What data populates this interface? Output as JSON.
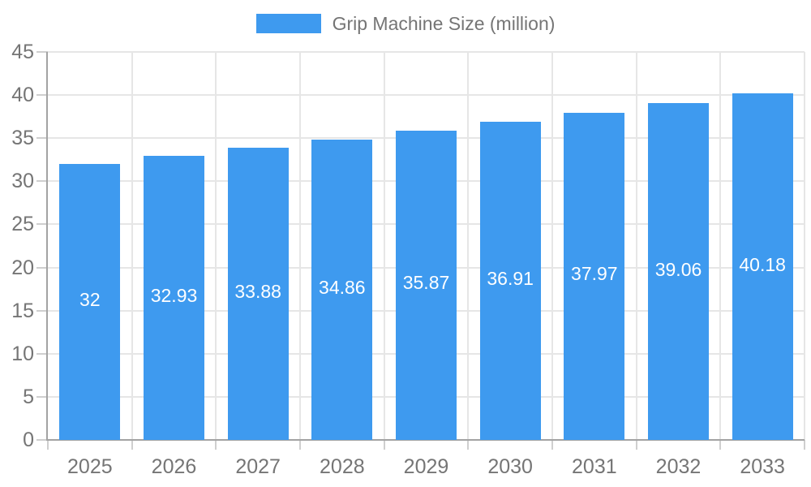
{
  "legend": {
    "series_label": "Grip Machine Size (million)"
  },
  "chart_data": {
    "type": "bar",
    "title": "Grip Machine Size (million)",
    "categories": [
      "2025",
      "2026",
      "2027",
      "2028",
      "2029",
      "2030",
      "2031",
      "2032",
      "2033"
    ],
    "values": [
      32,
      32.93,
      33.88,
      34.86,
      35.87,
      36.91,
      37.97,
      39.06,
      40.18
    ],
    "value_labels": [
      "32",
      "32.93",
      "33.88",
      "34.86",
      "35.87",
      "36.91",
      "37.97",
      "39.06",
      "40.18"
    ],
    "xlabel": "",
    "ylabel": "",
    "ylim": [
      0,
      45
    ],
    "ytick_step": 5,
    "ytick_labels": [
      "0",
      "5",
      "10",
      "15",
      "20",
      "25",
      "30",
      "35",
      "40",
      "45"
    ],
    "grid": true,
    "legend_position": "top-center",
    "colors": {
      "bar": "#3E9AEF",
      "grid_line": "#E6E6E6",
      "axis_line": "#A3A3A3",
      "tick_line": "#CFCFCF",
      "axis_text": "#757575",
      "value_text": "#FFFFFF",
      "background": "#FFFFFF"
    }
  }
}
